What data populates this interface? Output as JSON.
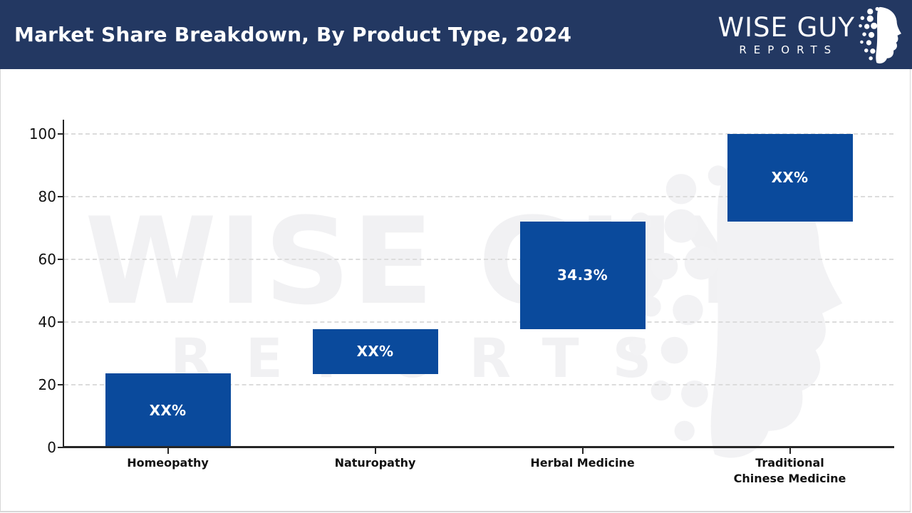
{
  "header": {
    "title": "Market Share Breakdown, By Product Type, 2024",
    "logo": {
      "line1": "WISE GUY",
      "line2": "REPORTS"
    }
  },
  "watermark": {
    "line1": "WISE GUY",
    "line2": "REPORTS"
  },
  "colors": {
    "header_bg": "#233862",
    "bar": "#0a4a9c",
    "grid": "#dcdcdc",
    "axis": "#262626",
    "watermark": "#f1f1f3"
  },
  "chart_data": {
    "type": "bar",
    "subtype": "floating-waterfall",
    "title": "Market Share Breakdown, By Product Type, 2024",
    "xlabel": "",
    "ylabel": "",
    "ylim": [
      0,
      104
    ],
    "yticks": [
      0,
      20,
      40,
      60,
      80,
      100
    ],
    "grid": "horizontal-dashed",
    "legend": "none",
    "categories": [
      "Homeopathy",
      "Naturopathy",
      "Herbal Medicine",
      "Traditional Chinese Medicine"
    ],
    "bars": [
      {
        "category": "Homeopathy",
        "lines": [
          "Homeopathy"
        ],
        "start": 0,
        "end": 23.6,
        "label": "XX%"
      },
      {
        "category": "Naturopathy",
        "lines": [
          "Naturopathy"
        ],
        "start": 23.4,
        "end": 37.7,
        "label": "XX%"
      },
      {
        "category": "Herbal Medicine",
        "lines": [
          "Herbal Medicine"
        ],
        "start": 37.7,
        "end": 72.0,
        "label": "34.3%"
      },
      {
        "category": "Traditional Chinese Medicine",
        "lines": [
          "Traditional",
          "Chinese Medicine"
        ],
        "start": 72.0,
        "end": 100,
        "label": "XX%"
      }
    ]
  }
}
